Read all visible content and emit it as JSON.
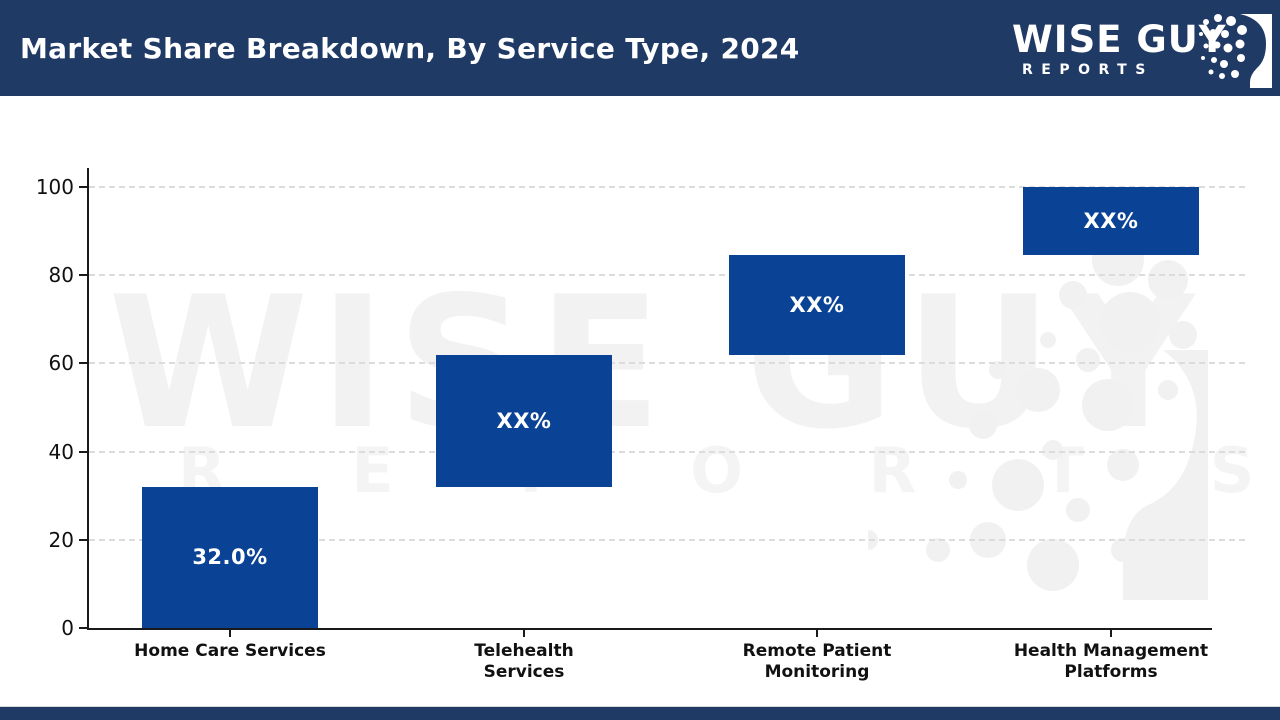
{
  "header": {
    "title": "Market Share Breakdown, By Service Type, 2024",
    "bg_color": "#203A66",
    "logo": {
      "line1": "WISE GUY",
      "line2": "R E P O R T S"
    }
  },
  "watermark": {
    "line1": "WISE GUY",
    "line2": "R E P O R T S"
  },
  "chart_data": {
    "type": "bar",
    "subtype": "waterfall-stacked-market-share",
    "title": "Market Share Breakdown, By Service Type, 2024",
    "categories": [
      "Home Care Services",
      "Telehealth Services",
      "Remote Patient Monitoring",
      "Health Management Platforms"
    ],
    "x_label_lines": [
      [
        "Home Care Services",
        ""
      ],
      [
        "Telehealth",
        "Services"
      ],
      [
        "Remote Patient",
        "Monitoring"
      ],
      [
        "Health Management",
        "Platforms"
      ]
    ],
    "series": [
      {
        "name": "Market Share (%)",
        "segments": [
          {
            "category": "Home Care Services",
            "start": 0,
            "end": 32,
            "label": "32.0%"
          },
          {
            "category": "Telehealth Services",
            "start": 32,
            "end": 62,
            "label": "XX%"
          },
          {
            "category": "Remote Patient Monitoring",
            "start": 62,
            "end": 84.5,
            "label": "XX%"
          },
          {
            "category": "Health Management Platforms",
            "start": 84.5,
            "end": 100,
            "label": "XX%"
          }
        ]
      }
    ],
    "yticks": [
      0,
      20,
      40,
      60,
      80,
      100
    ],
    "ylim": [
      0,
      104
    ],
    "xlabel": "",
    "ylabel": "",
    "grid": "horizontal dashed",
    "legend": "none",
    "bar_color": "#0A4296",
    "bar_label_color": "#ffffff",
    "axis_color": "#1a1a1a"
  },
  "footer": {
    "bg_color": "#203A66"
  }
}
